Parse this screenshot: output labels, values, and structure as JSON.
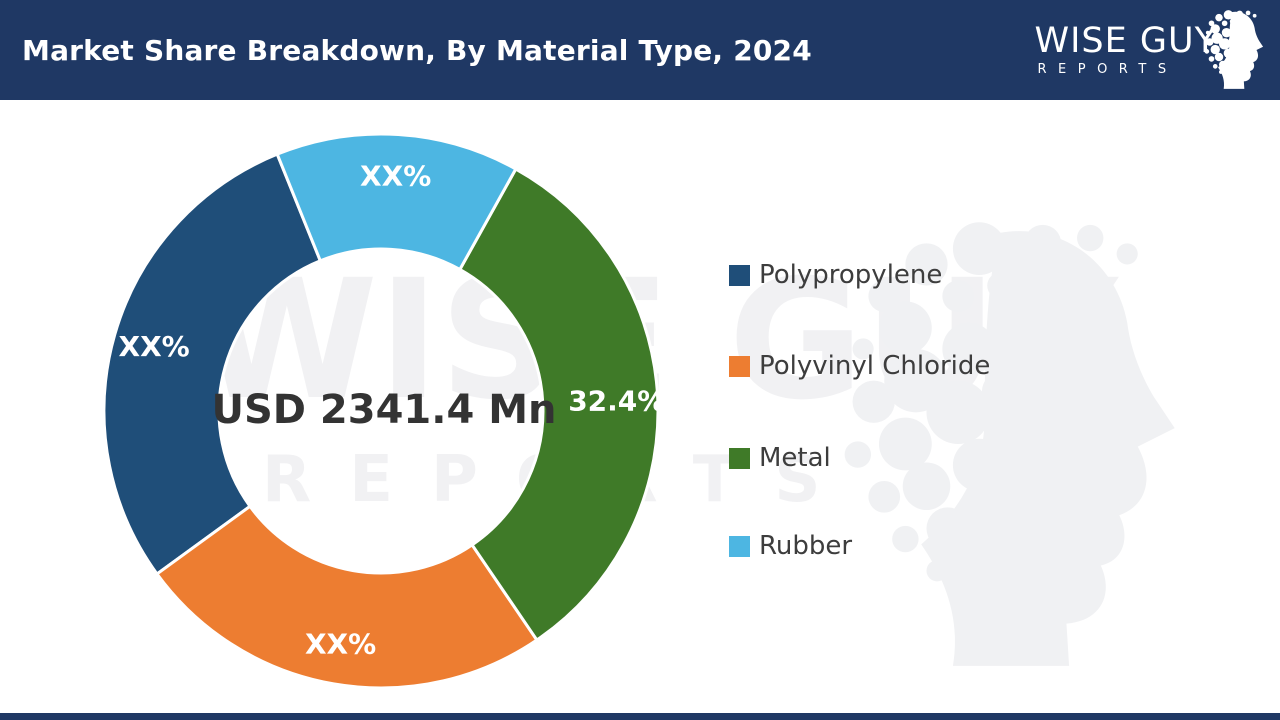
{
  "header": {
    "title": "Market Share Breakdown, By Material Type, 2024",
    "logo": {
      "line1": "WISE GUY",
      "line2": "REPORTS"
    }
  },
  "watermark": {
    "line1": "WISE GUY",
    "line2": "REPORTS"
  },
  "chart_data": {
    "type": "pie",
    "subtype": "donut",
    "title": "Market Share Breakdown, By Material Type, 2024",
    "center_label": "USD 2341.4 Mn",
    "legend_position": "right",
    "start_angle_deg": -22,
    "direction": "counterclockwise",
    "segments": [
      {
        "name": "Polypropylene",
        "label": "XX%",
        "value_pct": 28.9,
        "value_shown": false,
        "color": "#1f4e79"
      },
      {
        "name": "Polyvinyl Chloride",
        "label": "XX%",
        "value_pct": 24.5,
        "value_shown": false,
        "color": "#ed7d31"
      },
      {
        "name": "Metal",
        "label": "32.4%",
        "value_pct": 32.4,
        "value_shown": true,
        "color": "#3f7a28"
      },
      {
        "name": "Rubber",
        "label": "XX%",
        "value_pct": 14.2,
        "value_shown": false,
        "color": "#4db6e2"
      }
    ]
  },
  "colors": {
    "header_bar": "#1f3864",
    "footer_bar": "#1f3864",
    "watermark": "#f1f1f3",
    "center_text": "#333333",
    "legend_text": "#3d3d3d"
  }
}
